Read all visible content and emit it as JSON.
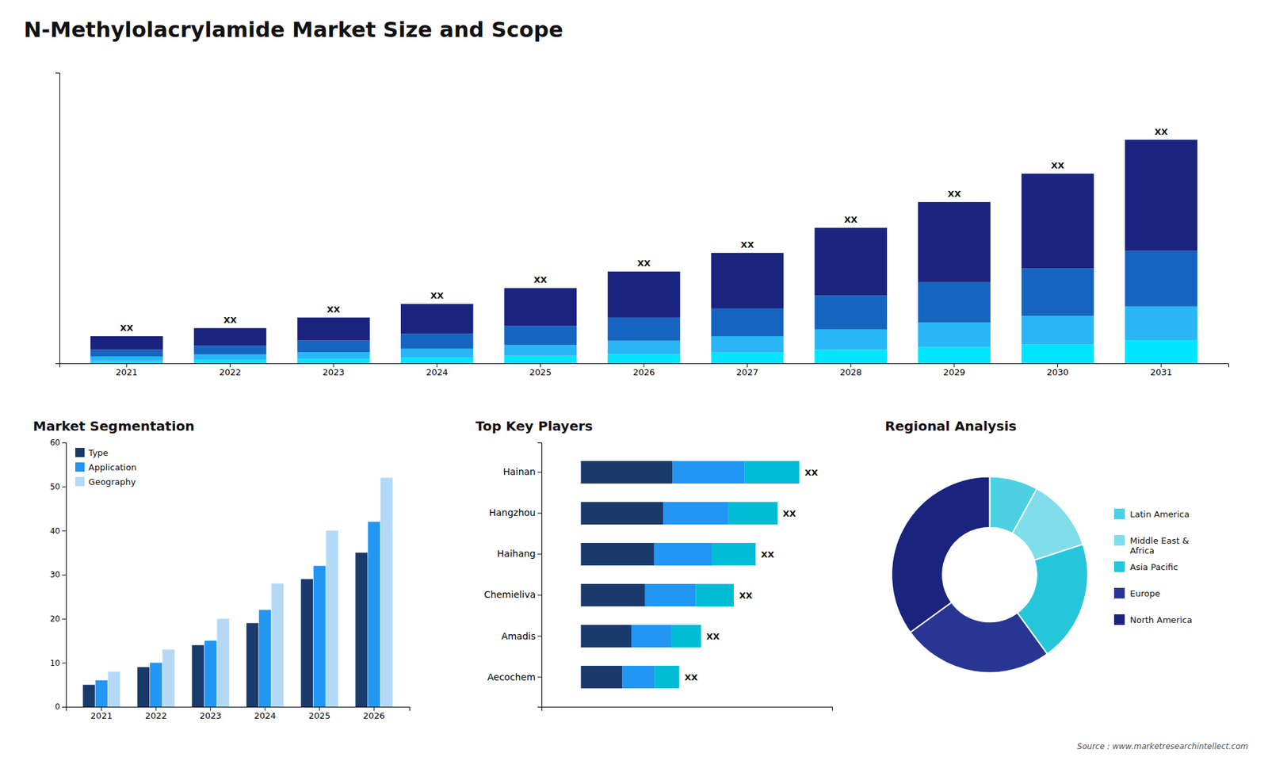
{
  "title": "N-Methylolacrylamide Market Size and Scope",
  "annotations": [
    "Source : www.marketresearchintellect.com"
  ],
  "chart_data": [
    {
      "type": "bar",
      "stacked": true,
      "categories": [
        "2021",
        "2022",
        "2023",
        "2024",
        "2025",
        "2026",
        "2027",
        "2028",
        "2029",
        "2030",
        "2031"
      ],
      "series": [
        {
          "color": "#00e5ff",
          "values": [
            0.2,
            0.25,
            0.33,
            0.43,
            0.55,
            0.67,
            0.8,
            1.0,
            1.2,
            1.4,
            1.7
          ]
        },
        {
          "color": "#29b6f6",
          "values": [
            0.3,
            0.4,
            0.5,
            0.65,
            0.8,
            1.0,
            1.2,
            1.5,
            1.8,
            2.1,
            2.5
          ]
        },
        {
          "color": "#1565c0",
          "values": [
            0.5,
            0.65,
            0.85,
            1.1,
            1.4,
            1.7,
            2.05,
            2.5,
            3.0,
            3.5,
            4.1
          ]
        },
        {
          "color": "#1a237e",
          "values": [
            1.0,
            1.3,
            1.7,
            2.2,
            2.8,
            3.4,
            4.1,
            5.0,
            5.9,
            7.0,
            8.2
          ]
        }
      ],
      "ylim": [
        0,
        21.45
      ],
      "yticks": [],
      "tick_labels": "x",
      "grid": false,
      "annotations": [
        "XX",
        "XX",
        "XX",
        "XX",
        "XX",
        "XX",
        "XX",
        "XX",
        "XX",
        "XX",
        "XX"
      ]
    },
    {
      "type": "bar",
      "title": "Market Segmentation",
      "categories": [
        "2021",
        "2022",
        "2023",
        "2024",
        "2025",
        "2026"
      ],
      "series": [
        {
          "name": "Type",
          "color": "#1a3a6b",
          "values": [
            5,
            9,
            14,
            19,
            29,
            35
          ]
        },
        {
          "name": "Application",
          "color": "#2196f3",
          "values": [
            6,
            10,
            15,
            22,
            32,
            42
          ]
        },
        {
          "name": "Geography",
          "color": "#b3d9f7",
          "values": [
            8,
            13,
            20,
            28,
            40,
            52
          ]
        }
      ],
      "ylim": [
        0,
        60
      ],
      "yticks": [
        0,
        10,
        20,
        30,
        40,
        50,
        60
      ],
      "legend": "upper left",
      "grid": false
    },
    {
      "type": "bar",
      "title": "Top Key Players",
      "orientation": "horizontal",
      "stacked": true,
      "categories": [
        "Hainan",
        "Hangzhou",
        "Haihang",
        "Chemieliva",
        "Amadis",
        "Aecochem"
      ],
      "series": [
        {
          "color": "#1a3a6b",
          "values": [
            42,
            37.8,
            33.6,
            29.4,
            23.1,
            18.9
          ]
        },
        {
          "color": "#2196f3",
          "values": [
            33,
            29.7,
            26.4,
            23.1,
            18.15,
            14.85
          ]
        },
        {
          "color": "#00bcd4",
          "values": [
            25,
            22.5,
            20,
            17.5,
            13.75,
            11.25
          ]
        }
      ],
      "xlim": [
        -18,
        115
      ],
      "xticks": [],
      "tick_labels": "y",
      "grid": false,
      "annotations": [
        "XX",
        "XX",
        "XX",
        "XX",
        "XX",
        "XX"
      ]
    },
    {
      "type": "donut",
      "title": "Regional Analysis",
      "categories": [
        "Latin America",
        "Middle East &\nAfrica",
        "Asia Pacific",
        "Europe",
        "North America"
      ],
      "values": [
        8,
        12,
        20,
        25,
        35
      ],
      "colors": [
        "#4dd0e1",
        "#80deea",
        "#26c6da",
        "#283593",
        "#1a237e"
      ],
      "legend": "right"
    }
  ]
}
